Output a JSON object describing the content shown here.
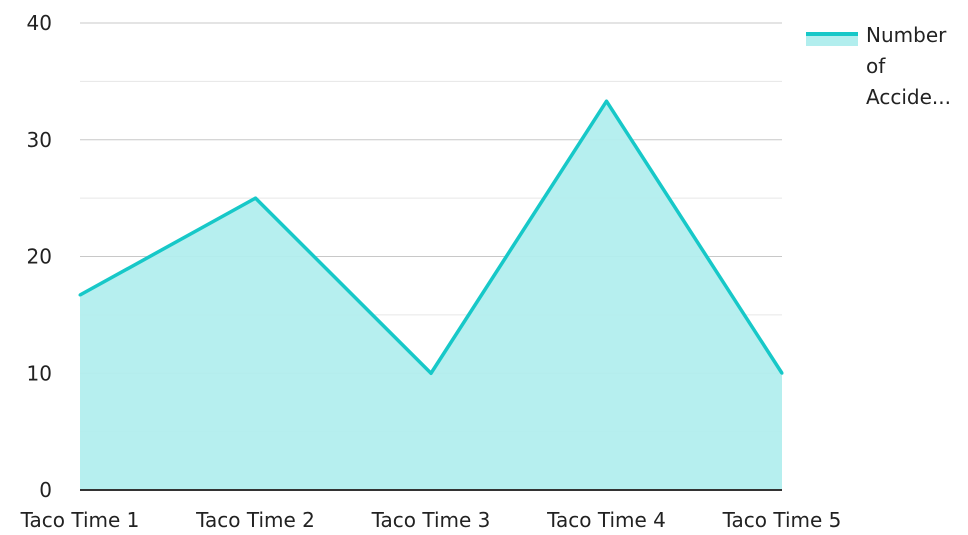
{
  "chart_data": {
    "type": "area",
    "categories": [
      "Taco Time 1",
      "Taco Time 2",
      "Taco Time 3",
      "Taco Time 4",
      "Taco Time 5"
    ],
    "series": [
      {
        "name": "Number of Accide...",
        "values": [
          16.7,
          25,
          10,
          33.3,
          10
        ]
      }
    ],
    "ylim": [
      0,
      40
    ],
    "yticks": [
      "0",
      "10",
      "20",
      "30",
      "40"
    ],
    "grid": true,
    "legend": "top-right",
    "colors": {
      "line": "#17c8c8",
      "fill": "#b2eeee",
      "grid_major": "#c8c8c8",
      "grid_minor": "#e6e6e6",
      "axis": "#333333"
    }
  }
}
